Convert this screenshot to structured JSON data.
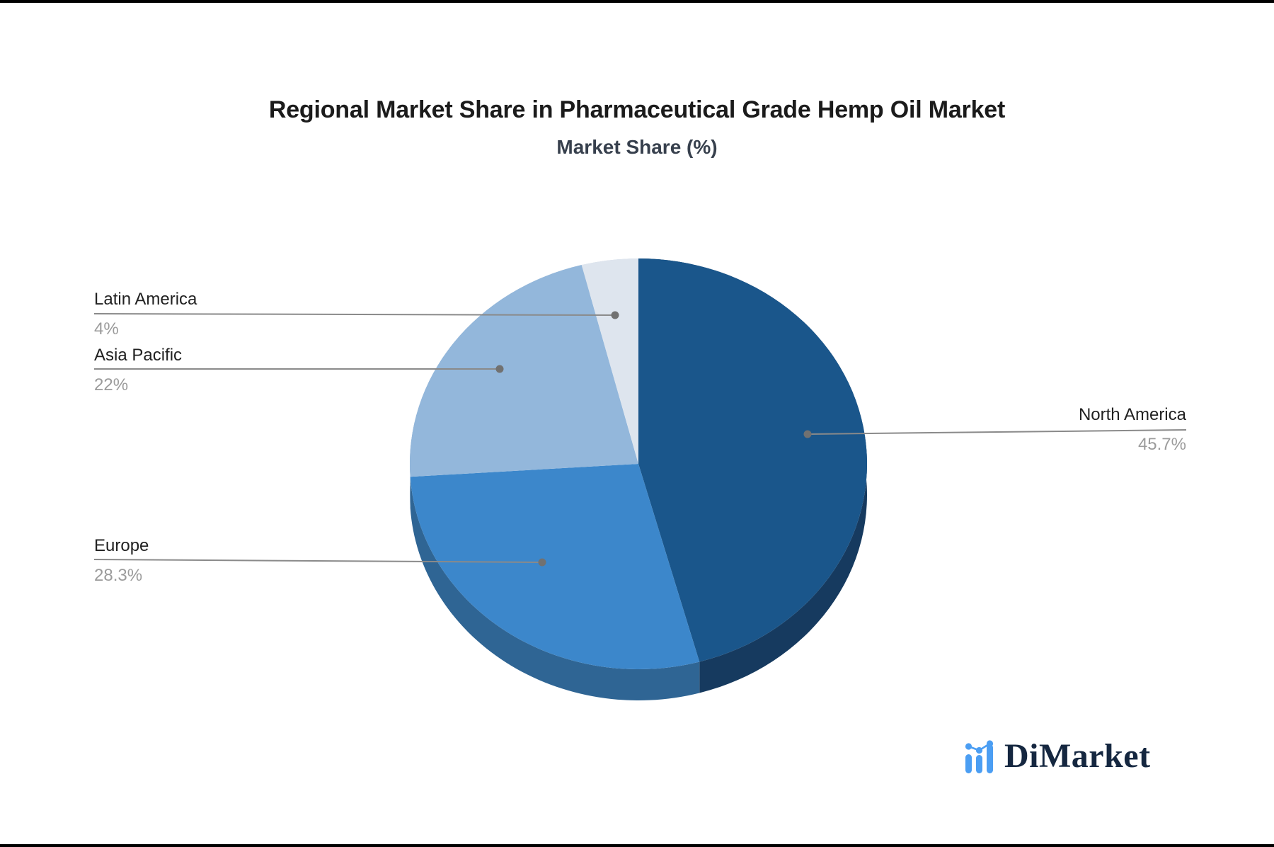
{
  "page": {
    "title": "Regional Market Share in Pharmaceutical Grade Hemp Oil Market",
    "subtitle": "Market Share (%)"
  },
  "chart_data": {
    "type": "pie",
    "title": "Regional Market Share in Pharmaceutical Grade Hemp Oil Market",
    "subtitle": "Market Share (%)",
    "unit": "%",
    "direction": "clockwise",
    "start_angle_deg": 0,
    "style": "3d-pie",
    "legend_position": "connector-labels",
    "series": [
      {
        "label": "North America",
        "value": 45.7,
        "display": "45.7%",
        "color": "#1a568b",
        "side_color": "#163a5f"
      },
      {
        "label": "Europe",
        "value": 28.3,
        "display": "28.3%",
        "color": "#3c87cb",
        "side_color": "#2f6594"
      },
      {
        "label": "Asia Pacific",
        "value": 22,
        "display": "22%",
        "color": "#93b7db",
        "side_color": "#7fa3c6"
      },
      {
        "label": "Latin America",
        "value": 4,
        "display": "4%",
        "color": "#dee5ee",
        "side_color": "#c2cfdf"
      }
    ]
  },
  "connectors": {
    "line_color": "#8a8a8a",
    "dot_color": "#717171"
  },
  "logo": {
    "text": "DiMarket",
    "icon": "bar-line-chart-icon",
    "accent": "#4b9ef3",
    "text_color": "#152740"
  }
}
